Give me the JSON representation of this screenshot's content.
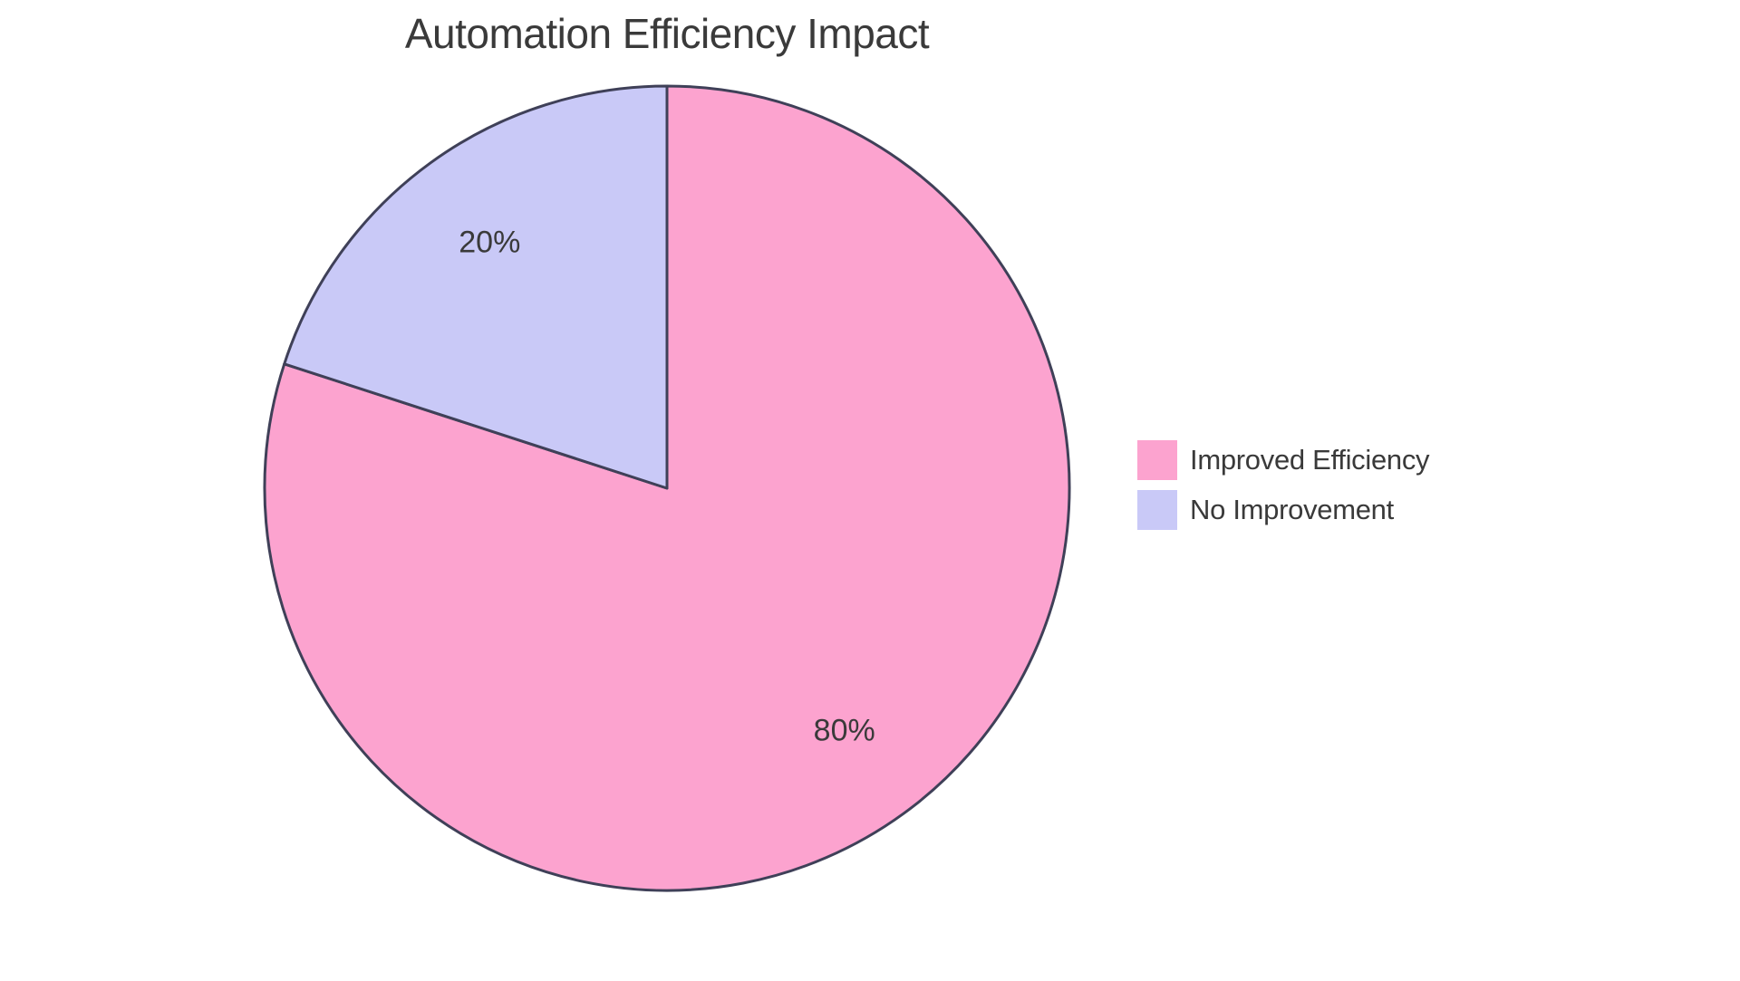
{
  "chart_data": {
    "type": "pie",
    "title": "Automation Efficiency Impact",
    "slices": [
      {
        "label": "Improved Efficiency",
        "value": 80,
        "display_pct": "80%",
        "color": "#FCA3CF"
      },
      {
        "label": "No Improvement",
        "value": 20,
        "display_pct": "20%",
        "color": "#C9C9F7"
      }
    ],
    "start_angle_deg": 90,
    "direction": "clockwise",
    "stroke_color": "#3F4058",
    "stroke_width": 3,
    "label_color": "#3A3A3A",
    "legend_position": "right",
    "background": "#FFFFFF",
    "grid": false
  }
}
